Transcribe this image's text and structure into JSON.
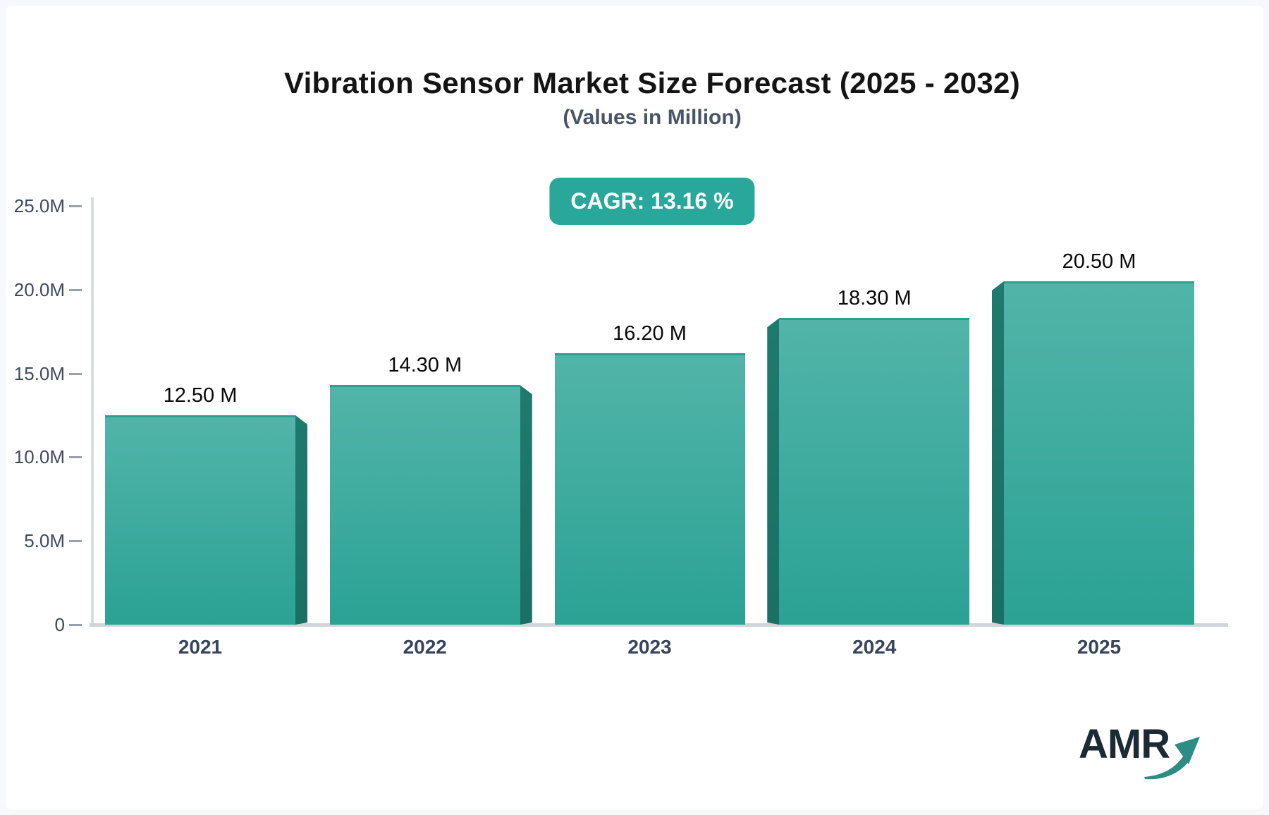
{
  "page": {
    "background_color": "#f7f8fb",
    "card_color": "#ffffff"
  },
  "header": {
    "title": "Vibration Sensor Market Size Forecast (2025 - 2032)",
    "subtitle": "(Values in Million)",
    "cagr_label": "CAGR: 13.16 %",
    "cagr_percent": "13.16 %",
    "badge_color": "#2aa79b"
  },
  "chart_data": {
    "type": "bar",
    "title": "Vibration Sensor Market Size Forecast (2025 - 2032)",
    "subtitle": "(Values in Million)",
    "unit": "Million",
    "categories": [
      "2021",
      "2022",
      "2023",
      "2024",
      "2025"
    ],
    "values": [
      12.5,
      14.3,
      16.2,
      18.3,
      20.5
    ],
    "value_labels": [
      "12.50 M",
      "14.30 M",
      "16.20 M",
      "18.30 M",
      "20.50 M"
    ],
    "ylim": [
      0,
      25
    ],
    "y_ticks": [
      {
        "label": "25.0M",
        "value": 25
      },
      {
        "label": "20.0M",
        "value": 20
      },
      {
        "label": "15.0M",
        "value": 15
      },
      {
        "label": "10.0M",
        "value": 10
      },
      {
        "label": "5.0M",
        "value": 5
      },
      {
        "label": "0",
        "value": 0
      }
    ],
    "grid": false,
    "legend": false,
    "style_3d": true,
    "bar_face_top_color": "#52b4a9",
    "bar_face_bottom_color": "#2aa294",
    "bar_top_edge_color": "#2f9d90",
    "bar_side_color": "#1e7a6e",
    "bar_side_dark_color": "#1b6f65",
    "axis_color": "#d1d5da"
  },
  "footer": {
    "logo_text": "AMR",
    "logo_arrow_color": "#2d8d85"
  }
}
